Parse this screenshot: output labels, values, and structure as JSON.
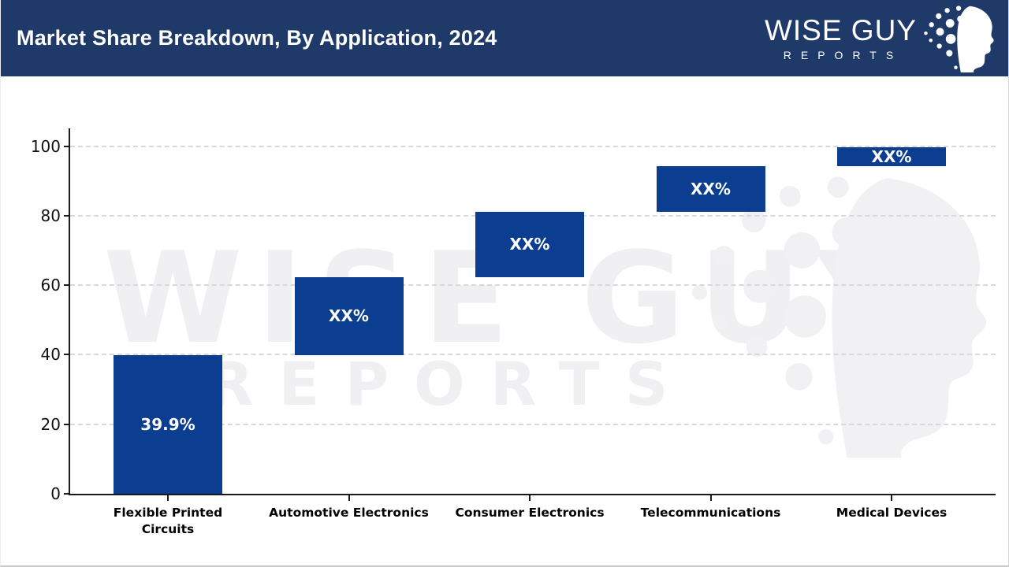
{
  "header": {
    "title": "Market Share Breakdown, By Application, 2024",
    "logo": {
      "line1": "WISE GUY",
      "line2": "REPORTS"
    }
  },
  "watermark": {
    "line1": "WISE GUY",
    "line2": "REPORTS"
  },
  "chart_data": {
    "type": "bar",
    "subtype": "waterfall",
    "title": "Market Share Breakdown, By Application, 2024",
    "xlabel": "",
    "ylabel": "",
    "ylim": [
      0,
      105
    ],
    "yticks": [
      0,
      20,
      40,
      60,
      80,
      100
    ],
    "grid": "horizontal-dashed",
    "legend": "none",
    "bar_color": "#0b3d91",
    "value_label_color": "#ffffff",
    "categories": [
      "Flexible Printed Circuits",
      "Automotive Electronics",
      "Consumer Electronics",
      "Telecommunications",
      "Medical Devices"
    ],
    "segments": [
      {
        "category": "Flexible Printed Circuits",
        "start": 0,
        "end": 39.9,
        "value_label": "39.9%",
        "share_est": 39.9
      },
      {
        "category": "Automotive Electronics",
        "start": 39.9,
        "end": 62.3,
        "value_label": "XX%",
        "share_est": 22.4
      },
      {
        "category": "Consumer Electronics",
        "start": 62.3,
        "end": 81.2,
        "value_label": "XX%",
        "share_est": 18.9
      },
      {
        "category": "Telecommunications",
        "start": 81.2,
        "end": 94.2,
        "value_label": "XX%",
        "share_est": 13.0
      },
      {
        "category": "Medical Devices",
        "start": 94.2,
        "end": 99.7,
        "value_label": "XX%",
        "share_est": 5.5
      }
    ]
  }
}
